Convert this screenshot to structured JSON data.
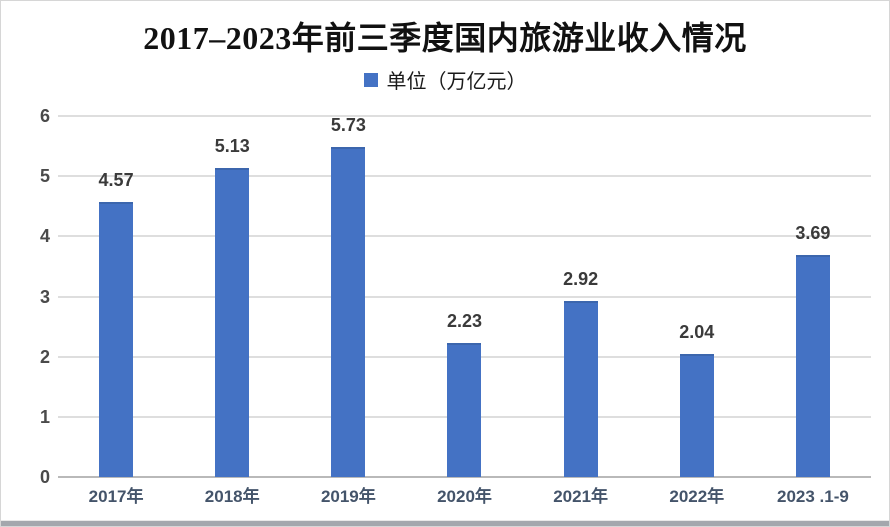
{
  "colors": {
    "bar": "#4472C4",
    "bar_top_edge": "#3c66ad",
    "gridline": "#dedede",
    "axis_line": "#b9b9b9",
    "y_label": "#4a4a4a",
    "x_label": "#44546a",
    "value_label": "#3a3a3a"
  },
  "chart_data": {
    "type": "bar",
    "title": "2017–2023年前三季度国内旅游业收入情况",
    "legend": "单位（万亿元）",
    "legend_position": "top",
    "legend_swatch_icon": "blue-square-icon",
    "categories": [
      "2017年",
      "2018年",
      "2019年",
      "2020年",
      "2021年",
      "2022年",
      "2023 .1-9"
    ],
    "values": [
      4.57,
      5.13,
      5.73,
      2.23,
      2.92,
      2.04,
      3.69
    ],
    "value_labels": [
      "4.57",
      "5.13",
      "5.73",
      "2.23",
      "2.92",
      "2.04",
      "3.69"
    ],
    "xlabel": "",
    "ylabel": "",
    "ylim": [
      0,
      6
    ],
    "yticks": [
      0,
      1,
      2,
      3,
      4,
      5,
      6
    ],
    "grid": true
  }
}
